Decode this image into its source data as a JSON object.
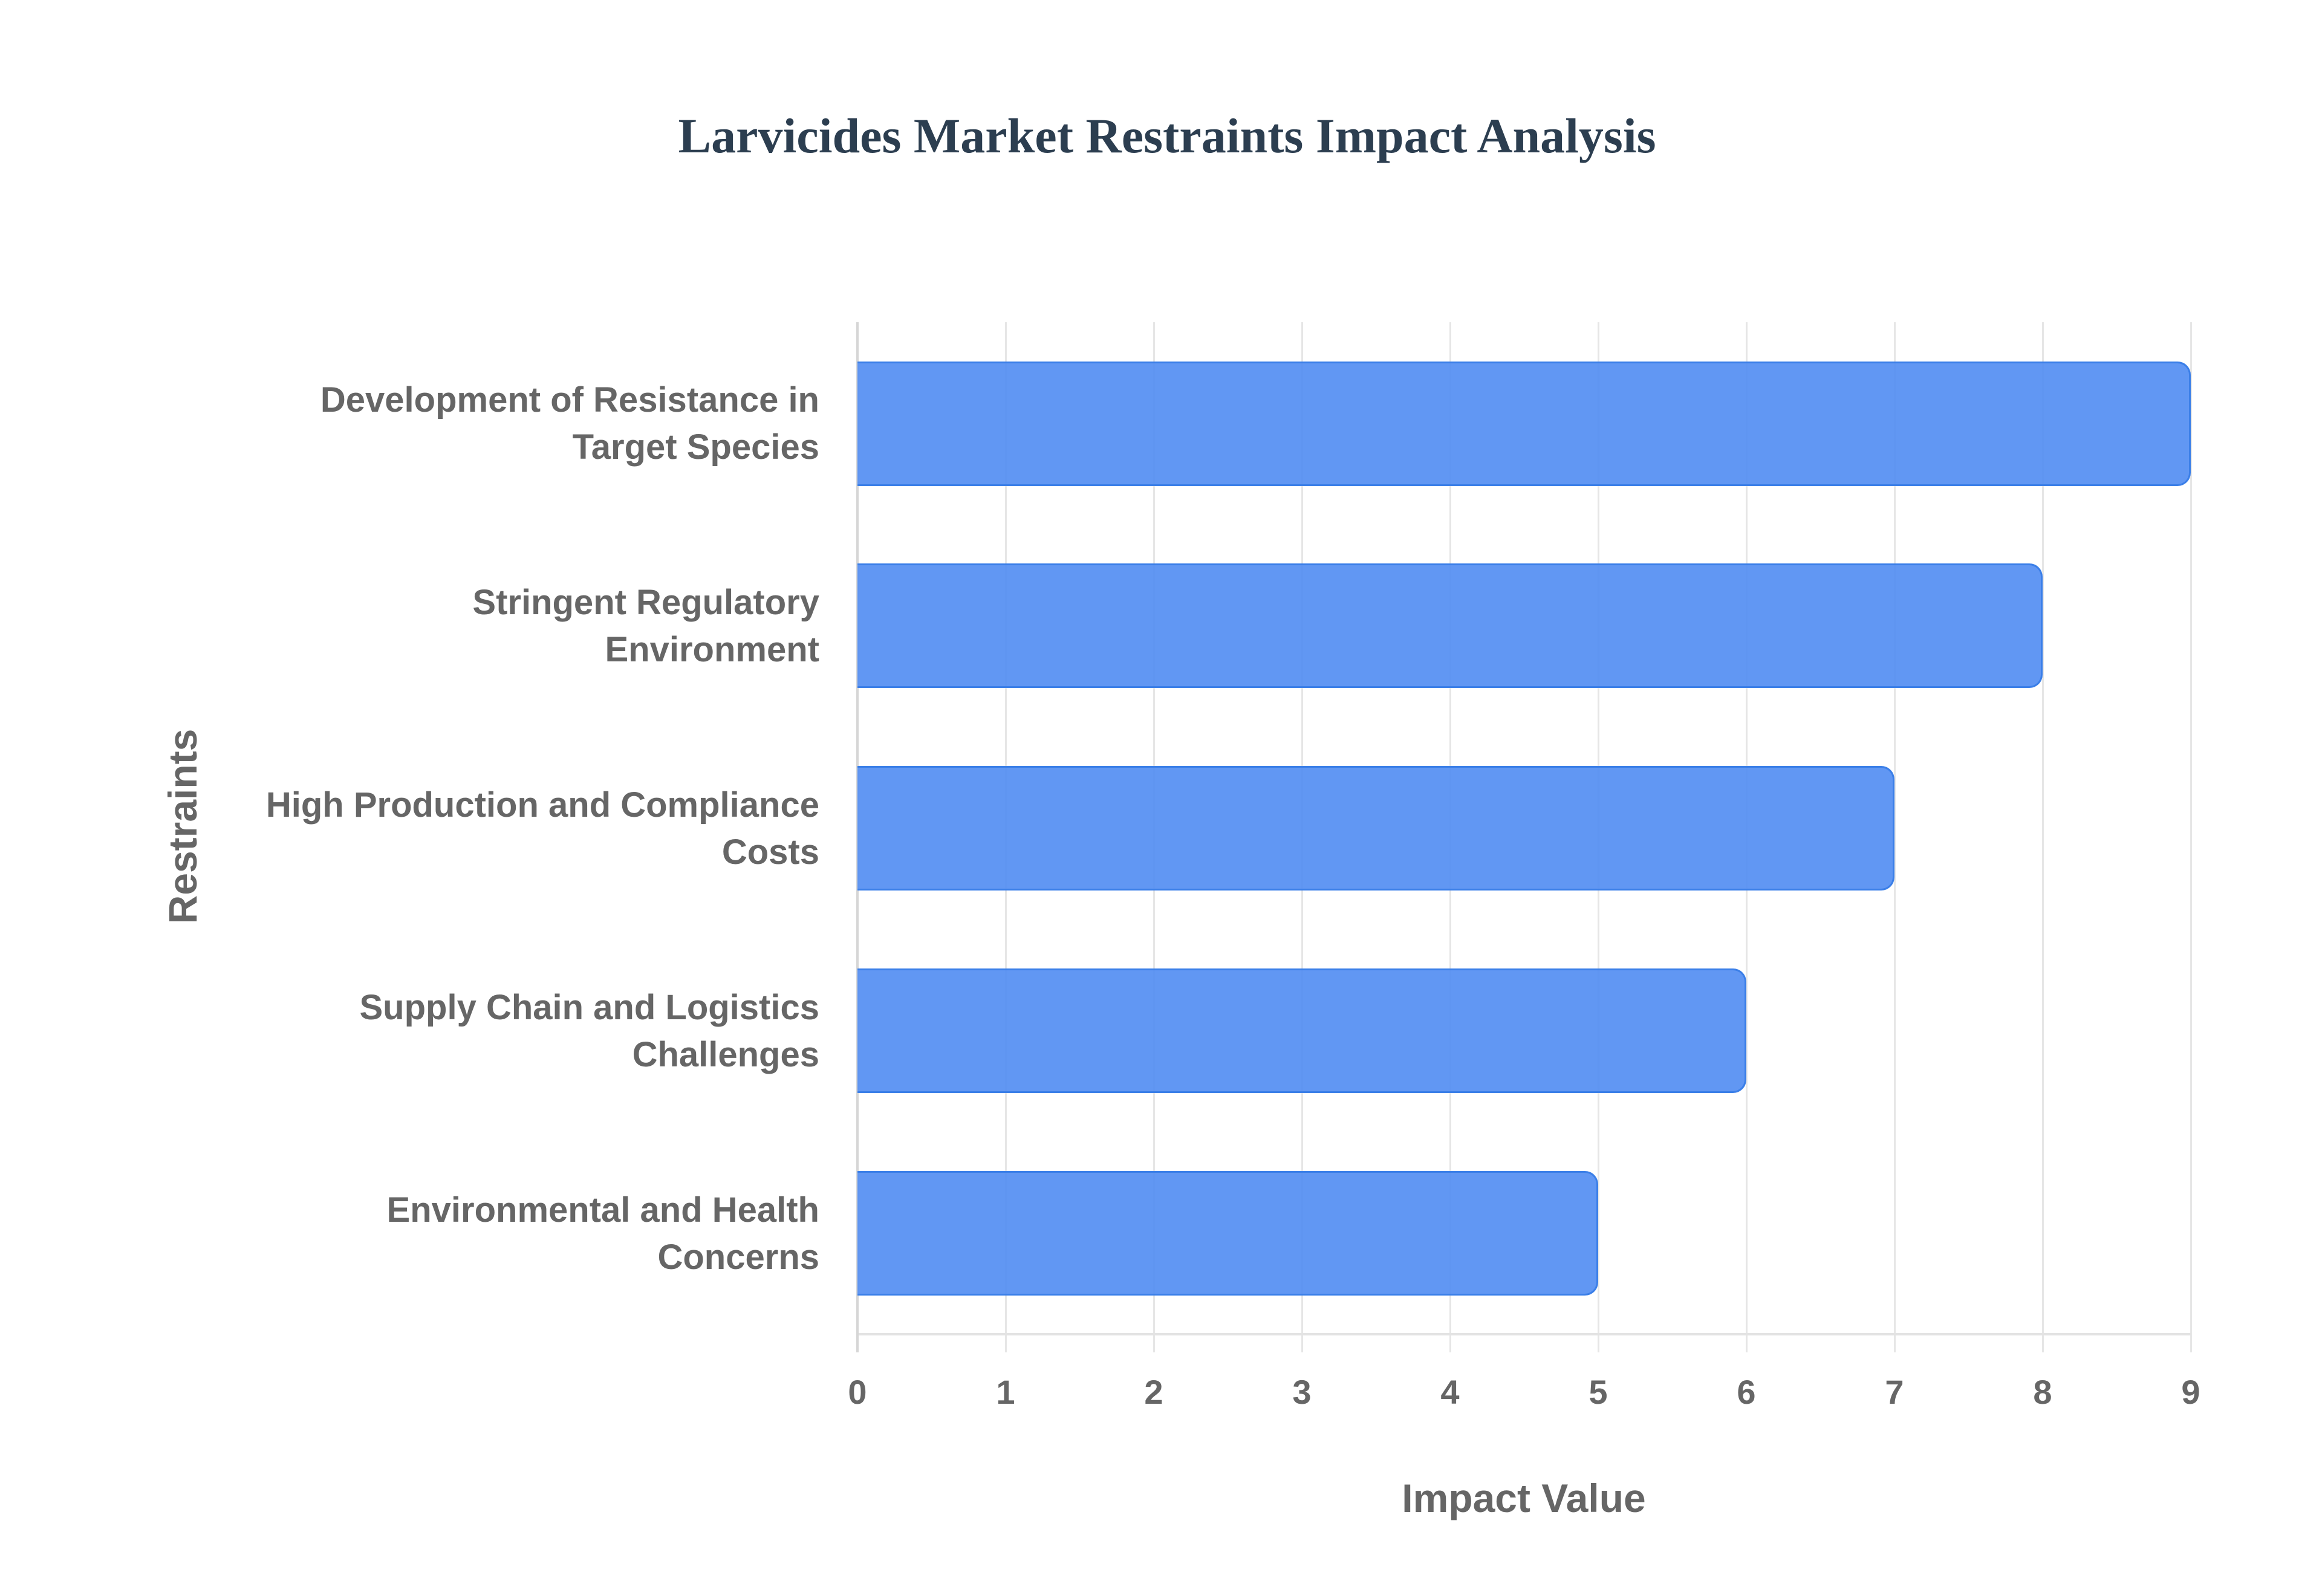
{
  "chart_data": {
    "type": "bar",
    "orientation": "horizontal",
    "title": "Larvicides Market Restraints Impact Analysis",
    "xlabel": "Impact Value",
    "ylabel": "Restraints",
    "categories": [
      "Development of Resistance in Target Species",
      "Stringent Regulatory Environment",
      "High Production and Compliance Costs",
      "Supply Chain and Logistics Challenges",
      "Environmental and Health Concerns"
    ],
    "values": [
      9,
      8,
      7,
      6,
      5
    ],
    "xlim": [
      0,
      9
    ],
    "x_ticks": [
      "0",
      "1",
      "2",
      "3",
      "4",
      "5",
      "6",
      "7",
      "8",
      "9"
    ],
    "grid": true,
    "legend": null,
    "bar_color": "#6199f4",
    "bar_border_color": "#3b7fe8"
  },
  "labels": {
    "l0a": "Development of Resistance in",
    "l0b": "Target Species",
    "l1a": "Stringent Regulatory",
    "l1b": "Environment",
    "l2a": "High Production and Compliance",
    "l2b": "Costs",
    "l3a": "Supply Chain and Logistics",
    "l3b": "Challenges",
    "l4a": "Environmental and Health",
    "l4b": "Concerns"
  }
}
